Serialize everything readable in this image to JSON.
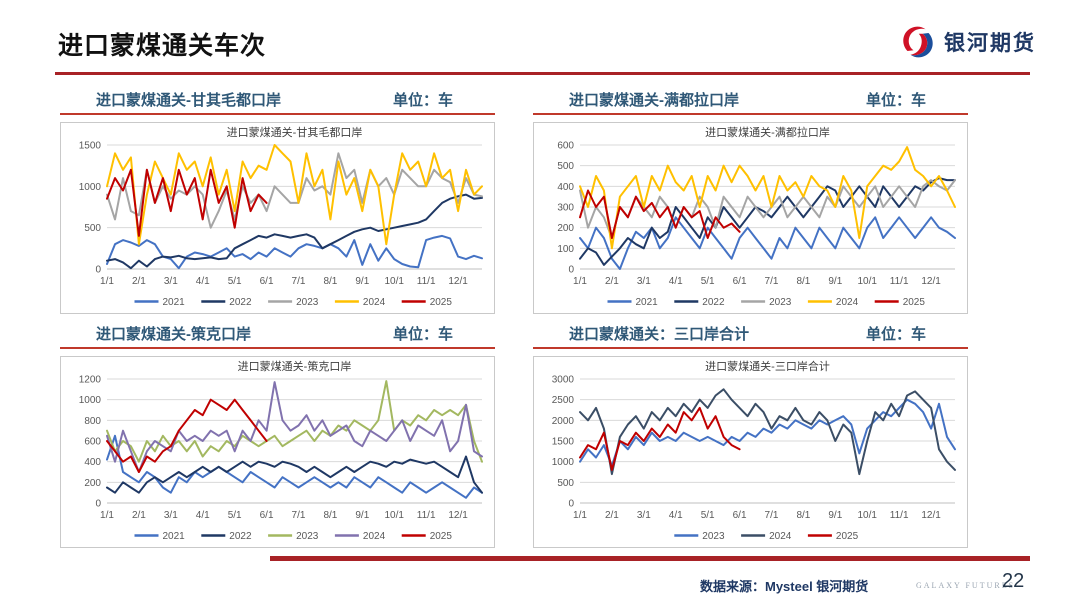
{
  "page": {
    "title": "进口蒙煤通关车次",
    "logo_text": "银河期货",
    "footer_source": "数据来源：Mysteel 银河期货",
    "footer_brand": "GALAXY FUTURES",
    "page_number": "22"
  },
  "colors": {
    "accent_red": "#a82226",
    "panel_rule_red": "#c0392b",
    "header_blue": "#2f5877",
    "grid": "#d9d9d9",
    "axis": "#bfbfbf",
    "tick_text": "#595959",
    "inner_title": "#404040"
  },
  "chart_data": [
    {
      "type": "line",
      "header": "进口蒙煤通关-甘其毛都口岸",
      "unit_label": "单位：车",
      "title": "进口蒙煤通关-甘其毛都口岸",
      "ylim": [
        0,
        1500
      ],
      "yticks": [
        0,
        500,
        1000,
        1500
      ],
      "x_labels": [
        "1/1",
        "2/1",
        "3/1",
        "4/1",
        "5/1",
        "6/1",
        "7/1",
        "8/1",
        "9/1",
        "10/1",
        "11/1",
        "12/1"
      ],
      "legend_position": "bottom",
      "grid": true,
      "series": [
        {
          "name": "2021",
          "color": "#4472c4",
          "values": [
            60,
            300,
            350,
            320,
            280,
            350,
            300,
            150,
            120,
            10,
            150,
            200,
            180,
            150,
            200,
            250,
            150,
            180,
            120,
            200,
            150,
            250,
            200,
            150,
            250,
            300,
            280,
            250,
            300,
            250,
            150,
            350,
            50,
            300,
            100,
            250,
            120,
            60,
            30,
            20,
            350,
            380,
            400,
            370,
            150,
            120,
            160,
            130
          ]
        },
        {
          "name": "2022",
          "color": "#1f3864",
          "values": [
            100,
            120,
            80,
            10,
            100,
            30,
            120,
            150,
            140,
            160,
            130,
            120,
            130,
            140,
            120,
            130,
            250,
            300,
            350,
            400,
            380,
            420,
            400,
            380,
            400,
            420,
            380,
            250,
            300,
            350,
            400,
            450,
            480,
            500,
            460,
            480,
            500,
            520,
            540,
            560,
            600,
            700,
            800,
            850,
            880,
            900,
            850,
            860
          ]
        },
        {
          "name": "2023",
          "color": "#a5a5a5",
          "values": [
            900,
            600,
            1100,
            700,
            650,
            1200,
            800,
            1000,
            850,
            950,
            900,
            1000,
            900,
            500,
            700,
            950,
            600,
            1000,
            800,
            900,
            700,
            1000,
            900,
            800,
            800,
            1100,
            950,
            1000,
            900,
            1400,
            1100,
            1200,
            800,
            1200,
            1000,
            1100,
            900,
            1200,
            1100,
            1000,
            1000,
            1200,
            1100,
            1050,
            800,
            1100,
            900,
            880
          ]
        },
        {
          "name": "2024",
          "color": "#ffc000",
          "values": [
            1000,
            1400,
            1200,
            1350,
            300,
            900,
            1300,
            1100,
            900,
            1400,
            1200,
            1300,
            1000,
            1350,
            900,
            1200,
            700,
            1300,
            1100,
            1250,
            1200,
            1500,
            1400,
            1300,
            800,
            1400,
            1000,
            1200,
            600,
            1300,
            900,
            1100,
            700,
            1200,
            1000,
            300,
            900,
            1400,
            1200,
            1300,
            1000,
            1400,
            1100,
            1200,
            700,
            1200,
            900,
            1000
          ]
        },
        {
          "name": "2025",
          "color": "#c00000",
          "values": [
            850,
            1100,
            950,
            1200,
            400,
            1200,
            800,
            1100,
            700,
            1200,
            900,
            1100,
            600,
            1200,
            800,
            1000,
            500,
            1100,
            700,
            900,
            800,
            null,
            null,
            null,
            null,
            null,
            null,
            null,
            null,
            null,
            null,
            null,
            null,
            null,
            null,
            null,
            null,
            null,
            null,
            null,
            null,
            null,
            null,
            null,
            null,
            null,
            null,
            null
          ]
        }
      ]
    },
    {
      "type": "line",
      "header": "进口蒙煤通关-满都拉口岸",
      "unit_label": "单位：车",
      "title": "进口蒙煤通关-满都拉口岸",
      "ylim": [
        0,
        600
      ],
      "yticks": [
        0,
        100,
        200,
        300,
        400,
        500,
        600
      ],
      "x_labels": [
        "1/1",
        "2/1",
        "3/1",
        "4/1",
        "5/1",
        "6/1",
        "7/1",
        "8/1",
        "9/1",
        "10/1",
        "11/1",
        "12/1"
      ],
      "legend_position": "bottom",
      "grid": true,
      "series": [
        {
          "name": "2021",
          "color": "#4472c4",
          "values": [
            150,
            100,
            200,
            150,
            50,
            0,
            100,
            180,
            150,
            200,
            100,
            150,
            250,
            200,
            150,
            100,
            200,
            150,
            100,
            50,
            150,
            200,
            150,
            100,
            50,
            150,
            100,
            200,
            150,
            100,
            200,
            150,
            100,
            200,
            150,
            100,
            200,
            250,
            150,
            200,
            250,
            200,
            150,
            200,
            250,
            200,
            180,
            150
          ]
        },
        {
          "name": "2022",
          "color": "#1f3864",
          "values": [
            50,
            100,
            80,
            20,
            60,
            100,
            150,
            120,
            100,
            200,
            150,
            180,
            300,
            250,
            200,
            150,
            250,
            200,
            300,
            250,
            200,
            250,
            300,
            280,
            250,
            300,
            350,
            300,
            250,
            300,
            350,
            400,
            380,
            300,
            350,
            400,
            350,
            300,
            400,
            350,
            300,
            350,
            400,
            380,
            420,
            440,
            430,
            430
          ]
        },
        {
          "name": "2023",
          "color": "#a5a5a5",
          "values": [
            380,
            200,
            300,
            250,
            150,
            300,
            250,
            350,
            300,
            250,
            350,
            300,
            200,
            300,
            250,
            350,
            300,
            200,
            350,
            300,
            250,
            350,
            300,
            250,
            300,
            350,
            250,
            300,
            350,
            300,
            250,
            350,
            300,
            400,
            350,
            300,
            350,
            400,
            300,
            350,
            400,
            350,
            300,
            400,
            430,
            400,
            380,
            430
          ]
        },
        {
          "name": "2024",
          "color": "#ffc000",
          "values": [
            400,
            300,
            450,
            380,
            100,
            350,
            400,
            450,
            300,
            450,
            380,
            500,
            420,
            380,
            450,
            300,
            450,
            380,
            500,
            420,
            500,
            450,
            380,
            450,
            300,
            450,
            380,
            420,
            350,
            450,
            400,
            380,
            300,
            450,
            380,
            150,
            400,
            450,
            500,
            480,
            520,
            590,
            480,
            450,
            400,
            450,
            380,
            300
          ]
        },
        {
          "name": "2025",
          "color": "#c00000",
          "values": [
            250,
            380,
            300,
            350,
            150,
            300,
            250,
            350,
            280,
            320,
            250,
            300,
            200,
            300,
            250,
            280,
            150,
            250,
            200,
            220,
            180,
            null,
            null,
            null,
            null,
            null,
            null,
            null,
            null,
            null,
            null,
            null,
            null,
            null,
            null,
            null,
            null,
            null,
            null,
            null,
            null,
            null,
            null,
            null,
            null,
            null,
            null,
            null
          ]
        }
      ]
    },
    {
      "type": "line",
      "header": "进口蒙煤通关-策克口岸",
      "unit_label": "单位：车",
      "title": "进口蒙煤通关-策克口岸",
      "ylim": [
        0,
        1200
      ],
      "yticks": [
        0,
        200,
        400,
        600,
        800,
        1000,
        1200
      ],
      "x_labels": [
        "1/1",
        "2/1",
        "3/1",
        "4/1",
        "5/1",
        "6/1",
        "7/1",
        "8/1",
        "9/1",
        "10/1",
        "11/1",
        "12/1"
      ],
      "legend_position": "bottom",
      "grid": true,
      "series": [
        {
          "name": "2021",
          "color": "#4472c4",
          "values": [
            420,
            650,
            300,
            250,
            200,
            300,
            250,
            150,
            100,
            250,
            200,
            300,
            250,
            300,
            350,
            300,
            250,
            200,
            300,
            250,
            200,
            150,
            250,
            200,
            150,
            200,
            250,
            200,
            150,
            200,
            150,
            250,
            200,
            150,
            250,
            200,
            150,
            100,
            200,
            150,
            100,
            150,
            200,
            150,
            100,
            50,
            150,
            100
          ]
        },
        {
          "name": "2022",
          "color": "#1f3864",
          "values": [
            150,
            100,
            200,
            150,
            100,
            200,
            250,
            200,
            250,
            300,
            250,
            300,
            350,
            300,
            350,
            300,
            350,
            400,
            350,
            400,
            380,
            350,
            400,
            380,
            350,
            300,
            350,
            300,
            250,
            300,
            350,
            300,
            350,
            400,
            380,
            350,
            400,
            380,
            420,
            400,
            380,
            400,
            350,
            300,
            250,
            450,
            200,
            100
          ]
        },
        {
          "name": "2023",
          "color": "#a3b860",
          "values": [
            700,
            500,
            600,
            550,
            400,
            600,
            500,
            650,
            550,
            600,
            500,
            600,
            450,
            550,
            500,
            600,
            550,
            650,
            600,
            550,
            600,
            650,
            550,
            600,
            650,
            700,
            600,
            700,
            650,
            750,
            700,
            800,
            750,
            700,
            800,
            1180,
            700,
            800,
            750,
            850,
            800,
            900,
            850,
            900,
            850,
            950,
            600,
            400
          ]
        },
        {
          "name": "2024",
          "color": "#8172ae",
          "values": [
            650,
            400,
            700,
            500,
            300,
            500,
            600,
            550,
            500,
            700,
            600,
            650,
            600,
            700,
            650,
            700,
            500,
            700,
            600,
            800,
            700,
            1170,
            800,
            700,
            750,
            850,
            700,
            800,
            650,
            700,
            750,
            600,
            550,
            700,
            650,
            600,
            700,
            800,
            600,
            750,
            700,
            650,
            800,
            500,
            600,
            950,
            500,
            450
          ]
        },
        {
          "name": "2025",
          "color": "#c00000",
          "values": [
            600,
            500,
            400,
            450,
            300,
            450,
            400,
            500,
            550,
            700,
            800,
            900,
            850,
            1000,
            950,
            900,
            1000,
            900,
            800,
            700,
            600,
            null,
            null,
            null,
            null,
            null,
            null,
            null,
            null,
            null,
            null,
            null,
            null,
            null,
            null,
            null,
            null,
            null,
            null,
            null,
            null,
            null,
            null,
            null,
            null,
            null,
            null,
            null
          ]
        }
      ]
    },
    {
      "type": "line",
      "header": "进口蒙煤通关：三口岸合计",
      "unit_label": "单位：车",
      "title": "进口蒙煤通关-三口岸合计",
      "ylim": [
        0,
        3000
      ],
      "yticks": [
        0,
        500,
        1000,
        1500,
        2000,
        2500,
        3000
      ],
      "x_labels": [
        "1/1",
        "2/1",
        "3/1",
        "4/1",
        "5/1",
        "6/1",
        "7/1",
        "8/1",
        "9/1",
        "10/1",
        "11/1",
        "12/1"
      ],
      "legend_position": "bottom",
      "grid": true,
      "series": [
        {
          "name": "2023",
          "color": "#4472c4",
          "values": [
            1000,
            1300,
            1100,
            1400,
            900,
            1500,
            1300,
            1600,
            1400,
            1700,
            1500,
            1600,
            1500,
            1700,
            1600,
            1500,
            1600,
            1500,
            1400,
            1600,
            1500,
            1700,
            1600,
            1800,
            1700,
            1900,
            1800,
            2000,
            1900,
            1800,
            2000,
            1900,
            2000,
            2100,
            1900,
            1200,
            1800,
            2000,
            2200,
            2100,
            2300,
            2500,
            2400,
            2200,
            1800,
            2400,
            1600,
            1300
          ]
        },
        {
          "name": "2024",
          "color": "#3b4e66",
          "values": [
            2200,
            2000,
            2300,
            1800,
            700,
            1600,
            1900,
            2100,
            1800,
            2200,
            2000,
            2300,
            2100,
            2400,
            2200,
            2500,
            2300,
            2600,
            2750,
            2500,
            2300,
            2100,
            2400,
            2200,
            1800,
            2100,
            2000,
            2300,
            2000,
            1900,
            2200,
            2000,
            1500,
            1900,
            1700,
            700,
            1500,
            2200,
            2000,
            2400,
            2100,
            2600,
            2700,
            2500,
            2300,
            1300,
            1000,
            800
          ]
        },
        {
          "name": "2025",
          "color": "#c00000",
          "values": [
            1100,
            1400,
            1300,
            1700,
            800,
            1500,
            1400,
            1700,
            1500,
            1800,
            1600,
            1900,
            1700,
            2200,
            2000,
            2300,
            1800,
            2100,
            1600,
            1400,
            1300,
            null,
            null,
            null,
            null,
            null,
            null,
            null,
            null,
            null,
            null,
            null,
            null,
            null,
            null,
            null,
            null,
            null,
            null,
            null,
            null,
            null,
            null,
            null,
            null,
            null,
            null,
            null
          ]
        }
      ]
    }
  ]
}
